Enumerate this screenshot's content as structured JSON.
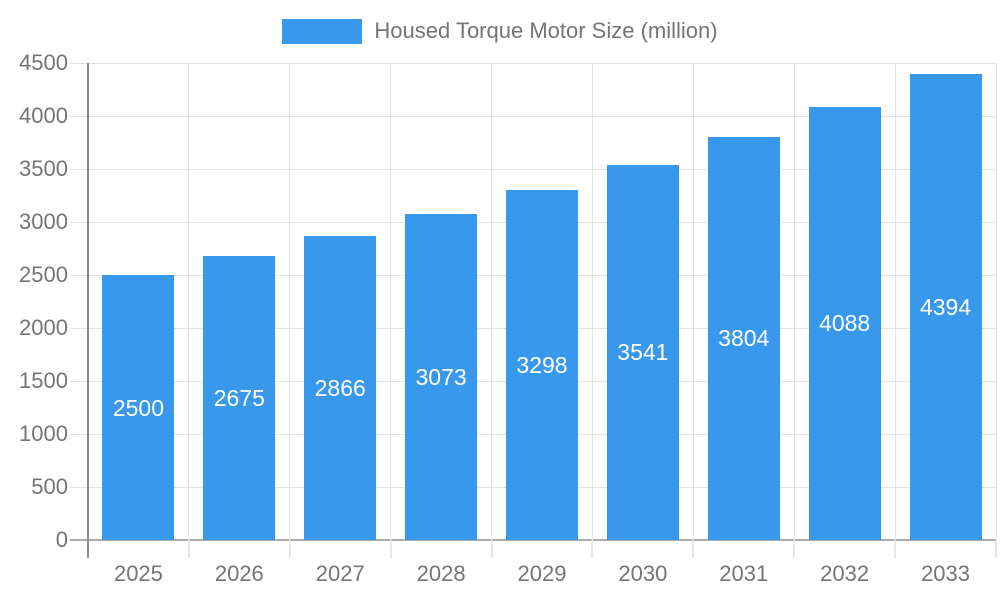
{
  "legend": {
    "series_label": "Housed Torque Motor Size (million)"
  },
  "chart_data": {
    "type": "bar",
    "title": "",
    "xlabel": "",
    "ylabel": "",
    "categories": [
      "2025",
      "2026",
      "2027",
      "2028",
      "2029",
      "2030",
      "2031",
      "2032",
      "2033"
    ],
    "series": [
      {
        "name": "Housed Torque Motor Size (million)",
        "values": [
          2500,
          2675,
          2866,
          3073,
          3298,
          3541,
          3804,
          4088,
          4394
        ]
      }
    ],
    "bar_value_labels": [
      "2500",
      "2675",
      "2866",
      "3073",
      "3298",
      "3541",
      "3804",
      "4088",
      "4394"
    ],
    "x_tick_labels": [
      "2025",
      "2026",
      "2027",
      "2028",
      "2029",
      "2030",
      "2031",
      "2032",
      "2033"
    ],
    "y_tick_labels": [
      "0",
      "500",
      "1000",
      "1500",
      "2000",
      "2500",
      "3000",
      "3500",
      "4000",
      "4500"
    ],
    "yticks": [
      0,
      500,
      1000,
      1500,
      2000,
      2500,
      3000,
      3500,
      4000,
      4500
    ],
    "ylim": [
      0,
      4500
    ],
    "grid": true,
    "legend_position": "top",
    "colors": {
      "bar": "#3899EC",
      "bar_label_text": "#FFFFFF",
      "axis_text": "#757575",
      "axis_line": "#8C8C8C",
      "baseline": "#ABABAB",
      "gridline": "#E2E2E2",
      "boundary_tick": "#E6E6E6",
      "background": "#FFFFFF"
    }
  }
}
